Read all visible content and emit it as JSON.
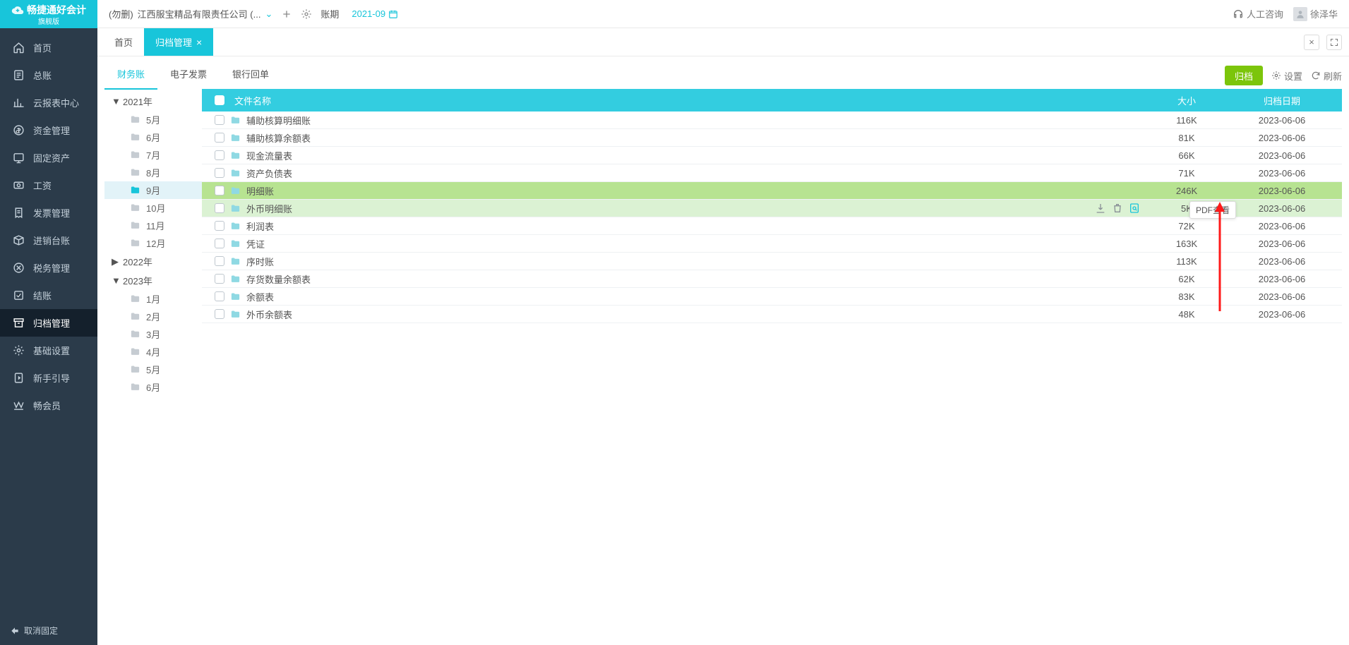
{
  "brand": {
    "title": "畅捷通好会计",
    "edition": "旗舰版"
  },
  "header": {
    "company_prefix": "(勿删)",
    "company_name": "江西服宝精品有限责任公司 (...",
    "period_label": "账期",
    "period_value": "2021-09",
    "consult_label": "人工咨询",
    "username": "徐泽华"
  },
  "sidebar": {
    "items": [
      {
        "label": "首页",
        "icon": "home"
      },
      {
        "label": "总账",
        "icon": "ledger"
      },
      {
        "label": "云报表中心",
        "icon": "report"
      },
      {
        "label": "资金管理",
        "icon": "fund"
      },
      {
        "label": "固定资产",
        "icon": "asset"
      },
      {
        "label": "工资",
        "icon": "salary"
      },
      {
        "label": "发票管理",
        "icon": "invoice"
      },
      {
        "label": "进销台账",
        "icon": "stock"
      },
      {
        "label": "税务管理",
        "icon": "tax"
      },
      {
        "label": "结账",
        "icon": "close"
      },
      {
        "label": "归档管理",
        "icon": "archive"
      },
      {
        "label": "基础设置",
        "icon": "settings"
      },
      {
        "label": "新手引导",
        "icon": "guide"
      },
      {
        "label": "畅会员",
        "icon": "vip"
      }
    ],
    "activeIndex": 10,
    "footer_label": "取消固定"
  },
  "tabs": {
    "items": [
      {
        "label": "首页",
        "closable": false
      },
      {
        "label": "归档管理",
        "closable": true
      }
    ],
    "activeIndex": 1
  },
  "subtabs": {
    "items": [
      "财务账",
      "电子发票",
      "银行回单"
    ],
    "activeIndex": 0
  },
  "actions": {
    "archive": "归档",
    "settings": "设置",
    "refresh": "刷新"
  },
  "tree": {
    "years": [
      {
        "year": "2021年",
        "expanded": true,
        "months": [
          "5月",
          "6月",
          "7月",
          "8月",
          "9月",
          "10月",
          "11月",
          "12月"
        ],
        "activeMonth": "9月"
      },
      {
        "year": "2022年",
        "expanded": false,
        "months": []
      },
      {
        "year": "2023年",
        "expanded": true,
        "months": [
          "1月",
          "2月",
          "3月",
          "4月",
          "5月",
          "6月"
        ],
        "activeMonth": null
      }
    ]
  },
  "table": {
    "columns": {
      "name": "文件名称",
      "size": "大小",
      "date": "归档日期"
    },
    "rows": [
      {
        "name": "辅助核算明细账",
        "size": "116K",
        "date": "2023-06-06",
        "state": "normal"
      },
      {
        "name": "辅助核算余额表",
        "size": "81K",
        "date": "2023-06-06",
        "state": "normal"
      },
      {
        "name": "现金流量表",
        "size": "66K",
        "date": "2023-06-06",
        "state": "normal"
      },
      {
        "name": "资产负债表",
        "size": "71K",
        "date": "2023-06-06",
        "state": "normal"
      },
      {
        "name": "明细账",
        "size": "246K",
        "date": "2023-06-06",
        "state": "selected"
      },
      {
        "name": "外币明细账",
        "size": "5K",
        "date": "2023-06-06",
        "state": "hovered"
      },
      {
        "name": "利润表",
        "size": "72K",
        "date": "2023-06-06",
        "state": "normal"
      },
      {
        "name": "凭证",
        "size": "163K",
        "date": "2023-06-06",
        "state": "normal"
      },
      {
        "name": "序时账",
        "size": "113K",
        "date": "2023-06-06",
        "state": "normal"
      },
      {
        "name": "存货数量余额表",
        "size": "62K",
        "date": "2023-06-06",
        "state": "normal"
      },
      {
        "name": "余额表",
        "size": "83K",
        "date": "2023-06-06",
        "state": "normal"
      },
      {
        "name": "外币余额表",
        "size": "48K",
        "date": "2023-06-06",
        "state": "normal"
      }
    ],
    "tooltip": "PDF查看"
  },
  "colors": {
    "brand": "#18c5da",
    "sidebar_bg": "#2b3b4a",
    "green_btn": "#7cc50b",
    "row_selected": "#b7e391",
    "row_hover": "#dbf2d3"
  }
}
